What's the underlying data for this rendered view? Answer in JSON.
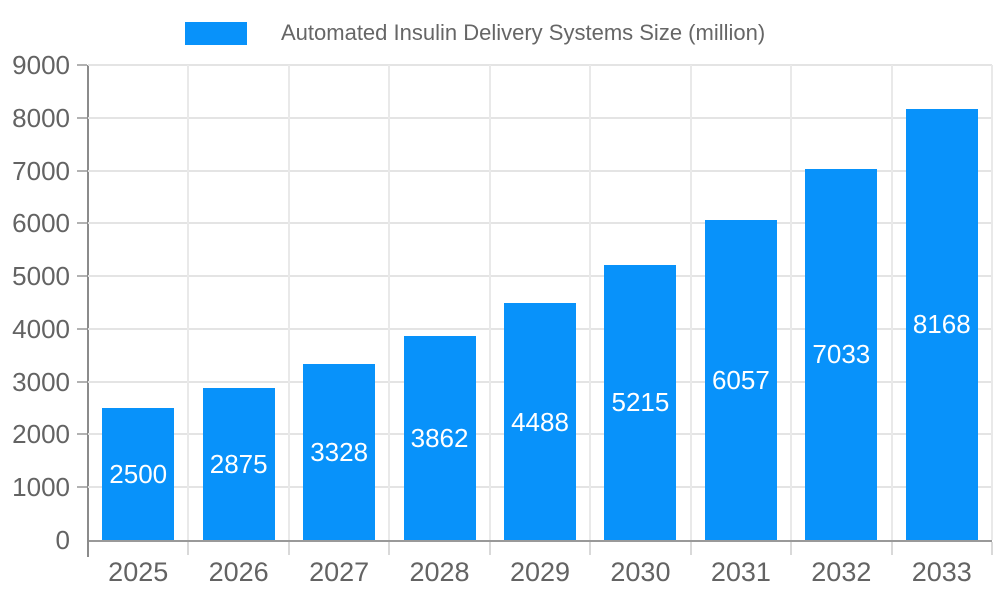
{
  "legend": {
    "label": "Automated Insulin Delivery Systems Size (million)"
  },
  "chart_data": {
    "type": "bar",
    "title": "Automated Insulin Delivery Systems Size (million)",
    "categories": [
      "2025",
      "2026",
      "2027",
      "2028",
      "2029",
      "2030",
      "2031",
      "2032",
      "2033"
    ],
    "values": [
      2500,
      2875,
      3328,
      3862,
      4488,
      5215,
      6057,
      7033,
      8168
    ],
    "series": [
      {
        "name": "Automated Insulin Delivery Systems Size (million)",
        "values": [
          2500,
          2875,
          3328,
          3862,
          4488,
          5215,
          6057,
          7033,
          8168
        ]
      }
    ],
    "xlabel": "",
    "ylabel": "",
    "ylim": [
      0,
      9000
    ],
    "ytick_step": 1000,
    "ytick_labels": [
      "0",
      "1000",
      "2000",
      "3000",
      "4000",
      "5000",
      "6000",
      "7000",
      "8000",
      "9000"
    ],
    "grid": true,
    "value_labels_shown": true,
    "value_label_position": "inside-center",
    "legend_position": "top-center",
    "bar_color": "#0892fa",
    "value_label_color": "#ffffff",
    "axis_text_color": "#636363",
    "gridline_color": "#e4e4e4",
    "axis_line_color": "#999999"
  }
}
